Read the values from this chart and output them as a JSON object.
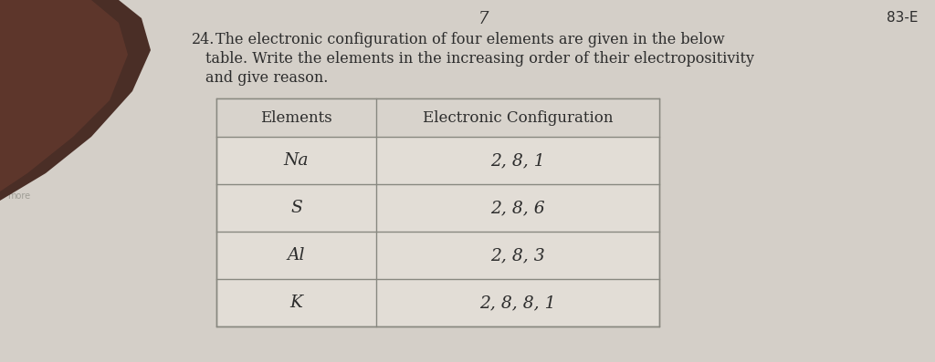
{
  "page_number": "7",
  "page_code": "83-E",
  "question_number": "24.",
  "question_text_line1": "The electronic configuration of four elements are given in the below",
  "question_text_line2": "table. Write the elements in the increasing order of their electropositivity",
  "question_text_line3": "and give reason.",
  "col1_header": "Elements",
  "col2_header": "Electronic Configuration",
  "rows": [
    [
      "Na",
      "2, 8, 1"
    ],
    [
      "S",
      "2, 8, 6"
    ],
    [
      "Al",
      "2, 8, 3"
    ],
    [
      "K",
      "2, 8, 8, 1"
    ]
  ],
  "page_bg": "#d4cfc8",
  "table_bg": "#e2ddd6",
  "text_color": "#2c2c2c",
  "finger_dark": "#3a2420",
  "finger_mid": "#6b3a30",
  "finger_edge": "#2a1a15"
}
